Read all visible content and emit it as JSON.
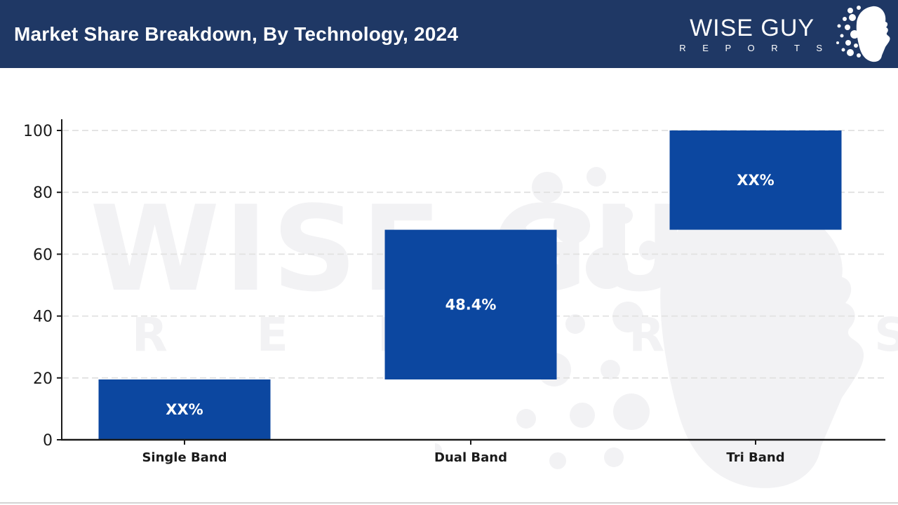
{
  "header": {
    "title": "Market Share Breakdown, By Technology, 2024",
    "logo": {
      "brand_top": "WISE GUY",
      "brand_bottom": "R E P O R T S"
    }
  },
  "watermark": {
    "line1": "WISE GUY",
    "line2": "R E P O R T S"
  },
  "chart_data": {
    "type": "bar",
    "subtype": "waterfall",
    "title": "Market Share Breakdown, By Technology, 2024",
    "categories": [
      "Single Band",
      "Dual Band",
      "Tri Band"
    ],
    "segments": [
      {
        "category": "Single Band",
        "start": 0,
        "end": 19.5,
        "label": "XX%"
      },
      {
        "category": "Dual Band",
        "start": 19.5,
        "end": 67.9,
        "label": "48.4%"
      },
      {
        "category": "Tri Band",
        "start": 67.9,
        "end": 100,
        "label": "XX%"
      }
    ],
    "xlabel": "",
    "ylabel": "",
    "ylim": [
      0,
      100
    ],
    "yticks": [
      0,
      20,
      40,
      60,
      80,
      100
    ],
    "grid": "dashed-horizontal",
    "legend": "none",
    "colors": {
      "bar": "#0c47a0",
      "bar_label_text": "#ffffff",
      "grid": "#e1e1e1",
      "axis": "#1a1a1a",
      "header_background": "#1f3865",
      "watermark": "#f2f2f4"
    }
  }
}
